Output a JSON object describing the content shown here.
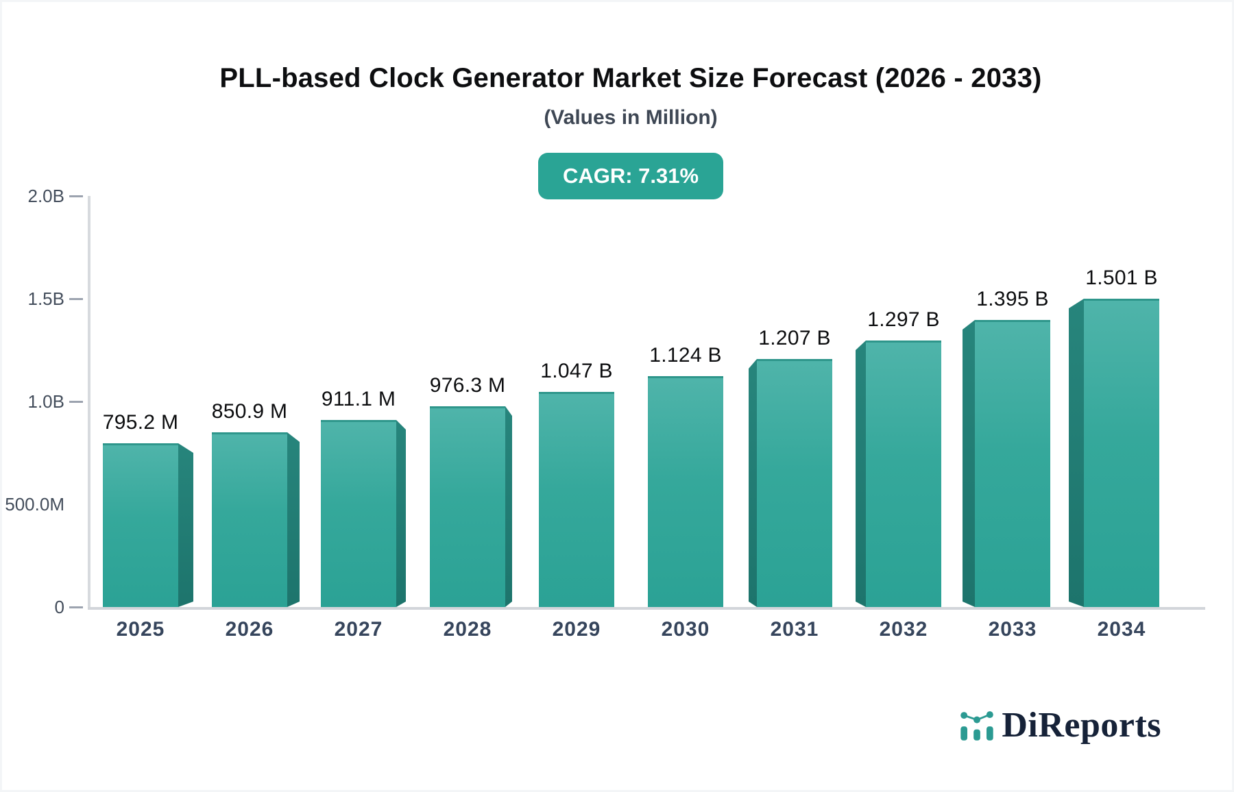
{
  "title": "PLL-based Clock Generator Market Size Forecast (2026 - 2033)",
  "subtitle": "(Values in Million)",
  "badge": {
    "label": "CAGR: 7.31%",
    "color": "#2aa495"
  },
  "chart_data": {
    "type": "bar",
    "title": "PLL-based Clock Generator Market Size Forecast (2026 - 2033)",
    "subtitle": "(Values in Million)",
    "cagr_percent": 7.31,
    "categories": [
      "2025",
      "2026",
      "2027",
      "2028",
      "2029",
      "2030",
      "2031",
      "2032",
      "2033",
      "2034"
    ],
    "values_millions": [
      795.2,
      850.9,
      911.1,
      976.3,
      1047,
      1124,
      1207,
      1297,
      1395,
      1501
    ],
    "value_labels": [
      "795.2 M",
      "850.9 M",
      "911.1 M",
      "976.3 M",
      "1.047 B",
      "1.124 B",
      "1.207 B",
      "1.297 B",
      "1.395 B",
      "1.501 B"
    ],
    "ylim_millions": [
      0,
      2000
    ],
    "y_ticks": [
      {
        "label": "2.0B",
        "value_millions": 2000,
        "dash": true
      },
      {
        "label": "1.5B",
        "value_millions": 1500,
        "dash": true
      },
      {
        "label": "1.0B",
        "value_millions": 1000,
        "dash": true
      },
      {
        "label": "500.0M",
        "value_millions": 500,
        "dash": false
      },
      {
        "label": "0",
        "value_millions": 0,
        "dash": true
      }
    ],
    "grid": false,
    "legend": "none",
    "bar_color_face": "#35a89b",
    "bar_color_side": "#217a72"
  },
  "logo": {
    "text": "DiReports",
    "icon": "mini-bar-chart-icon",
    "accent_color": "#2b9a92",
    "text_color": "#162238"
  }
}
